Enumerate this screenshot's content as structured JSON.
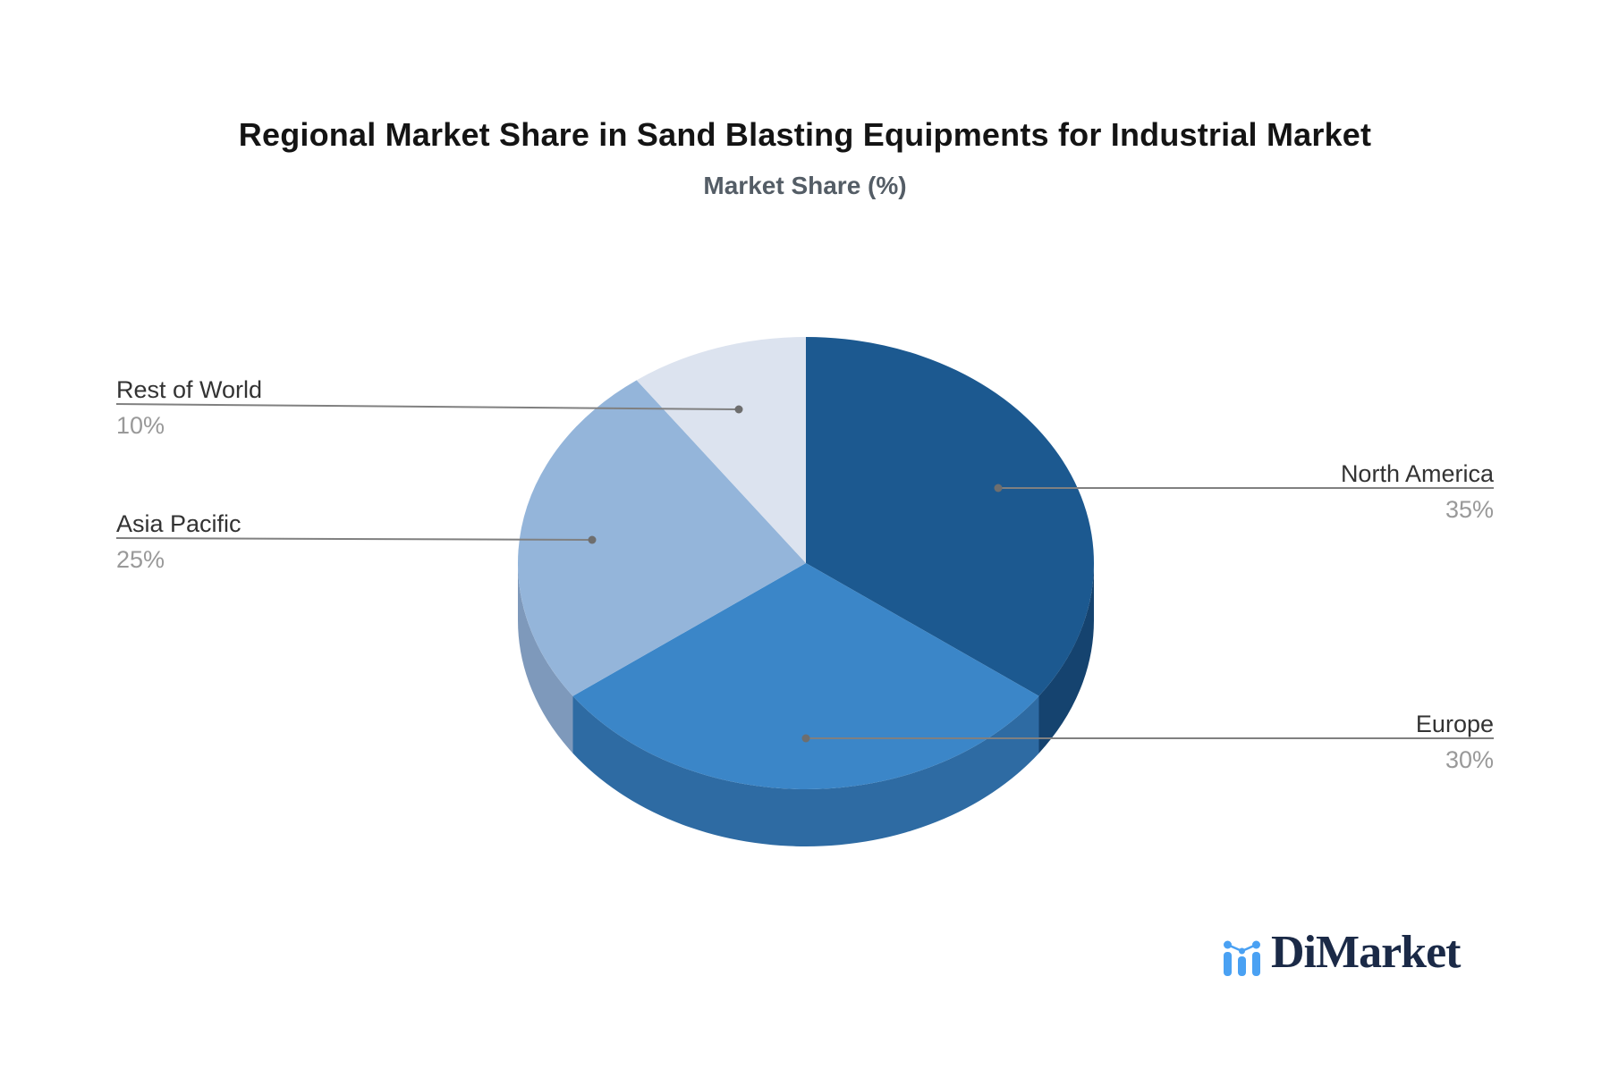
{
  "title": "Regional Market Share in Sand Blasting Equipments for Industrial Market",
  "subtitle": "Market Share (%)",
  "chart_data": {
    "type": "pie",
    "style": "3d",
    "title": "Market Share (%)",
    "unit": "%",
    "start_angle_deg": 0,
    "direction": "clockwise",
    "slices": [
      {
        "label": "North America",
        "value": 35,
        "pct": "35%",
        "color": "#1C5990",
        "side_color": "#15436F"
      },
      {
        "label": "Europe",
        "value": 30,
        "pct": "30%",
        "color": "#3B86C8",
        "side_color": "#2E6BA3"
      },
      {
        "label": "Asia Pacific",
        "value": 25,
        "pct": "25%",
        "color": "#94B5DA",
        "side_color": "#7E99BB"
      },
      {
        "label": "Rest of World",
        "value": 10,
        "pct": "10%",
        "color": "#DCE3EF",
        "side_color": "#C2CCDD"
      }
    ],
    "legend_position": "callout-labels",
    "label_name_color": "#333333",
    "label_pct_color": "#999999"
  },
  "connector": {
    "line_color": "#808080",
    "dot_color": "#6e6e6e"
  },
  "logo": {
    "text": "DiMarket",
    "icon": "bar-chart-trend-icon",
    "icon_color": "#4AA1F3",
    "text_color": "#1b2a47"
  }
}
